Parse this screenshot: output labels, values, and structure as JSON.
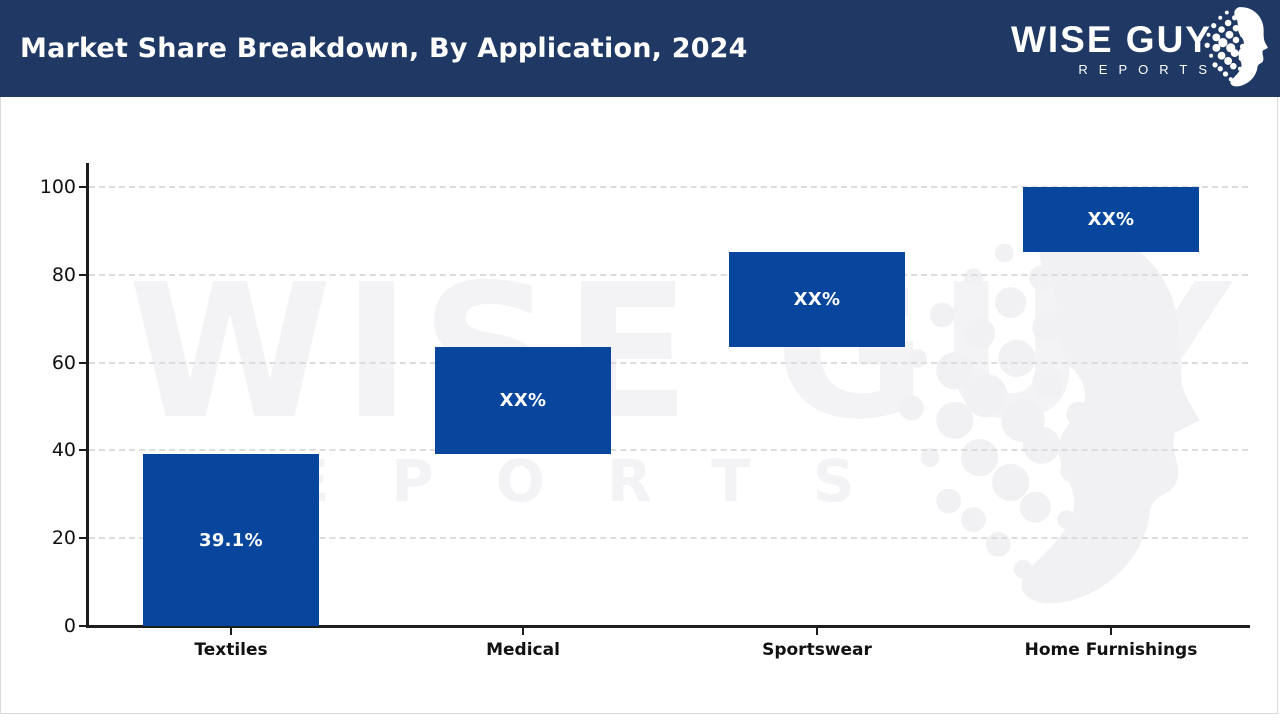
{
  "header": {
    "title": "Market Share Breakdown, By Application, 2024",
    "logo": {
      "line1": "WISE GUY",
      "line2": "REPORTS"
    }
  },
  "watermark": {
    "line1": "WISE GUY",
    "line2": "REPORTS"
  },
  "chart_data": {
    "type": "bar",
    "subtype": "waterfall",
    "title": "Market Share Breakdown, By Application, 2024",
    "categories": [
      "Textiles",
      "Medical",
      "Sportswear",
      "Home Furnishings"
    ],
    "segments": [
      {
        "category": "Textiles",
        "start": 0,
        "end": 39.1,
        "label": "39.1%"
      },
      {
        "category": "Medical",
        "start": 39.1,
        "end": 63.6,
        "label": "XX%"
      },
      {
        "category": "Sportswear",
        "start": 63.6,
        "end": 85.2,
        "label": "XX%"
      },
      {
        "category": "Home Furnishings",
        "start": 85.2,
        "end": 100,
        "label": "XX%"
      }
    ],
    "ylim": [
      0,
      100
    ],
    "yticks": [
      0,
      20,
      40,
      60,
      80,
      100
    ],
    "xlabel": "",
    "ylabel": "",
    "grid": "horizontal-dashed",
    "legend": "none",
    "bar_color": "#07469c",
    "bar_label_color": "#ffffff"
  },
  "colors": {
    "header_bg": "#1f3864",
    "bar": "#07469c",
    "axis": "#1d1d1d",
    "grid": "#dcdcdc",
    "watermark": "#f3f3f5",
    "card_border": "#d9d9d9"
  }
}
